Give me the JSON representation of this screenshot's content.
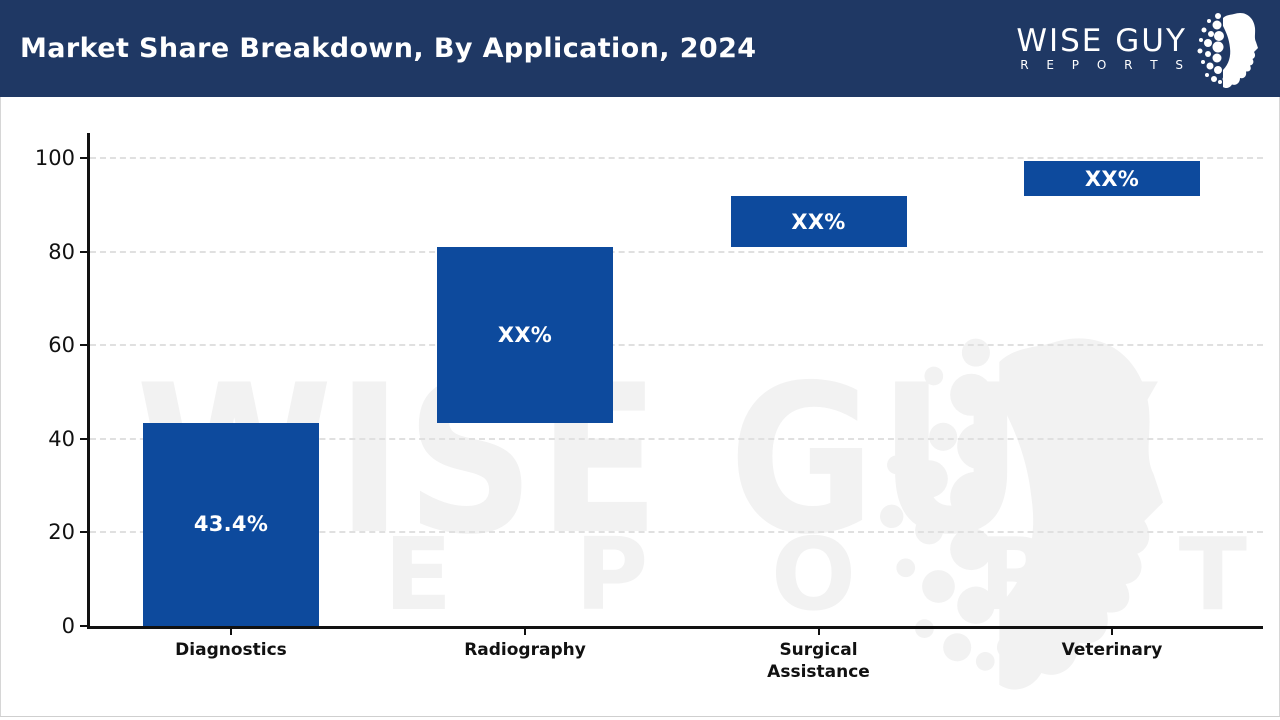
{
  "header": {
    "title": "Market Share Breakdown, By Application, 2024",
    "logo": {
      "brand_line1": "WISE GUY",
      "brand_line2": "R E P O R T S"
    }
  },
  "watermark": {
    "line1": "WISE GUY",
    "line2": "R E P O R T S"
  },
  "chart_data": {
    "type": "bar",
    "variant": "waterfall",
    "title": "Market Share Breakdown, By Application, 2024",
    "categories": [
      "Diagnostics",
      "Radiography",
      "Surgical Assistance",
      "Veterinary"
    ],
    "segments": [
      {
        "category": "Diagnostics",
        "start": 0,
        "end": 43.4,
        "label": "43.4%"
      },
      {
        "category": "Radiography",
        "start": 43.4,
        "end": 81.0,
        "label": "XX%"
      },
      {
        "category": "Surgical Assistance",
        "start": 81.0,
        "end": 91.8,
        "label": "XX%"
      },
      {
        "category": "Veterinary",
        "start": 91.8,
        "end": 99.3,
        "label": "XX%"
      }
    ],
    "xlabel": "",
    "ylabel": "",
    "ylim": [
      0,
      100
    ],
    "yticks": [
      0,
      20,
      40,
      60,
      80,
      100
    ],
    "legend": "none",
    "grid": "horizontal-dashed",
    "colors": {
      "bar": "#0d4a9d",
      "bar_label": "#ffffff",
      "grid": "#e0e0e0",
      "axis": "#111111",
      "header_bg": "#1f3864",
      "watermark": "#f2f2f2"
    }
  }
}
